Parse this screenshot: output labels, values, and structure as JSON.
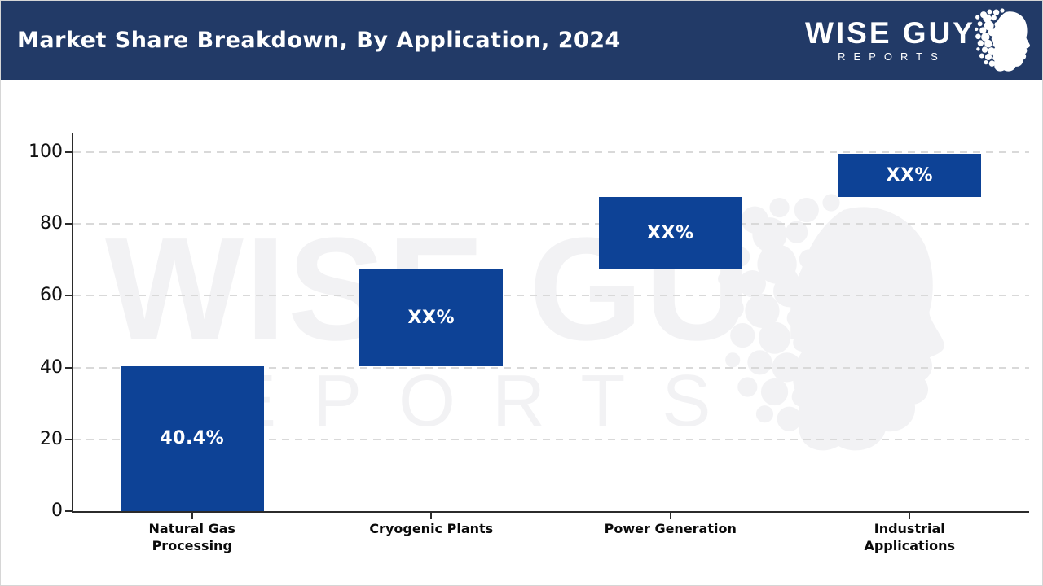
{
  "header": {
    "title": "Market Share Breakdown, By Application, 2024",
    "logo": {
      "line1": "WISE GUY",
      "line2": "REPORTS"
    }
  },
  "watermark": {
    "line1": "WISE GUY",
    "line2": "REPORTS"
  },
  "colors": {
    "header_bg": "#223a67",
    "bar": "#0d4296",
    "bar_label": "#ffffff",
    "grid": "#d9d9d9",
    "axis": "#2b2b2b",
    "tick_text": "#111111",
    "watermark": "#f2f2f4",
    "title_text": "#ffffff"
  },
  "chart_data": {
    "type": "bar",
    "subtype": "waterfall",
    "title": "Market Share Breakdown, By Application, 2024",
    "categories": [
      "Natural Gas\nProcessing",
      "Cryogenic Plants",
      "Power Generation",
      "Industrial\nApplications"
    ],
    "segments": [
      {
        "category": "Natural Gas Processing",
        "start": 0,
        "end": 40.4,
        "label": "40.4%"
      },
      {
        "category": "Cryogenic Plants",
        "start": 40.4,
        "end": 67.4,
        "label": "XX%"
      },
      {
        "category": "Power Generation",
        "start": 67.4,
        "end": 87.5,
        "label": "XX%"
      },
      {
        "category": "Industrial Applications",
        "start": 87.5,
        "end": 99.5,
        "label": "XX%"
      }
    ],
    "ylim": [
      0,
      100
    ],
    "yticks": [
      0,
      20,
      40,
      60,
      80,
      100
    ],
    "xlabel": "",
    "ylabel": "",
    "grid": "dashed-horizontal",
    "legend": "none"
  }
}
